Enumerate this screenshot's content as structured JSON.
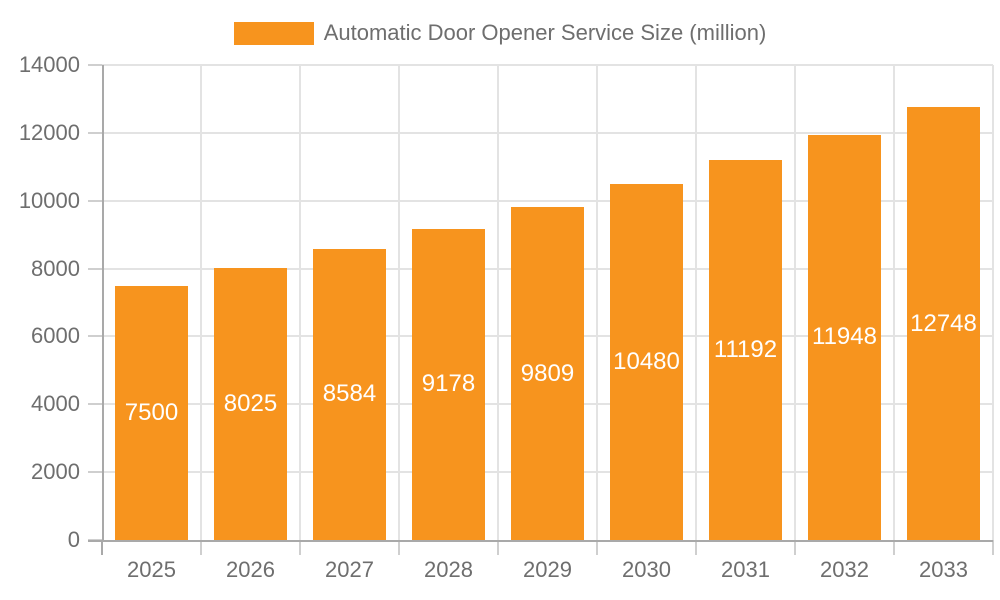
{
  "chart_data": {
    "type": "bar",
    "title": "Automatic Door Opener Service Size (million)",
    "categories": [
      "2025",
      "2026",
      "2027",
      "2028",
      "2029",
      "2030",
      "2031",
      "2032",
      "2033"
    ],
    "values": [
      7500,
      8025,
      8584,
      9178,
      9809,
      10480,
      11192,
      11948,
      12748
    ],
    "series": [
      {
        "name": "Automatic Door Opener Service Size (million)",
        "values": [
          7500,
          8025,
          8584,
          9178,
          9809,
          10480,
          11192,
          11948,
          12748
        ]
      }
    ],
    "xlabel": "",
    "ylabel": "",
    "ylim": [
      0,
      14000
    ],
    "yticks": [
      0,
      2000,
      4000,
      6000,
      8000,
      10000,
      12000,
      14000
    ],
    "grid": true,
    "legend_position": "top",
    "value_label_position": "inside-center",
    "colors": {
      "bar": "#F7941E",
      "value_label": "#ffffff",
      "axis": "#a9a9a9",
      "grid": "#e3e3e3",
      "tick": "#cfcfcf",
      "text": "#6e6e6e",
      "background": "#ffffff"
    }
  }
}
